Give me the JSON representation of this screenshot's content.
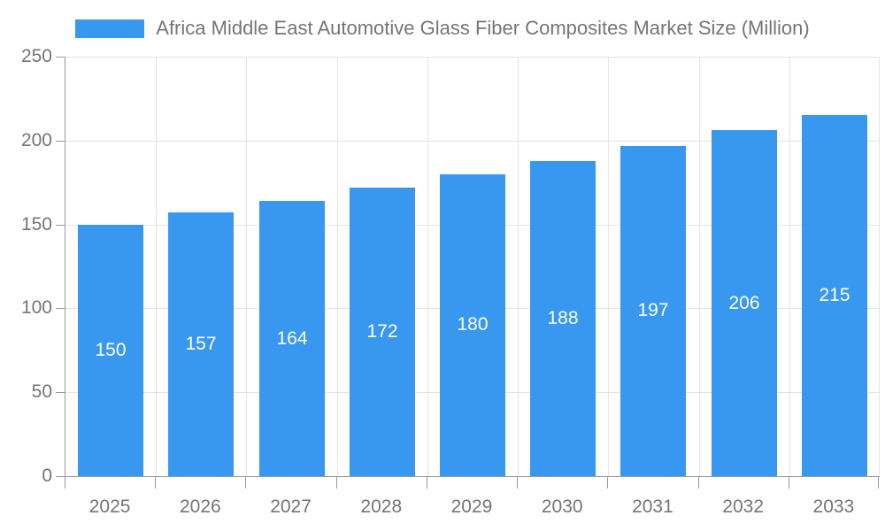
{
  "chart_data": {
    "type": "bar",
    "title": "Africa Middle East Automotive Glass Fiber Composites Market Size (Million)",
    "legend_entries": [
      "Africa Middle East Automotive Glass Fiber Composites Market Size (Million)"
    ],
    "legend_position": "top",
    "categories": [
      "2025",
      "2026",
      "2027",
      "2028",
      "2029",
      "2030",
      "2031",
      "2032",
      "2033"
    ],
    "values": [
      150,
      157,
      164,
      172,
      180,
      188,
      197,
      206,
      215
    ],
    "data_labels_visible": true,
    "xlabel": "",
    "ylabel": "",
    "ylim": [
      0,
      250
    ],
    "yticks": [
      0,
      50,
      100,
      150,
      200,
      250
    ],
    "grid": true,
    "colors": {
      "bar": "#3898F0",
      "bar_label_text": "#FFFFFF",
      "axis_text": "#757575",
      "title_text": "#757575",
      "grid_line": "#E4E4E4",
      "axis_line": "#999999",
      "background": "#FFFFFF"
    }
  }
}
